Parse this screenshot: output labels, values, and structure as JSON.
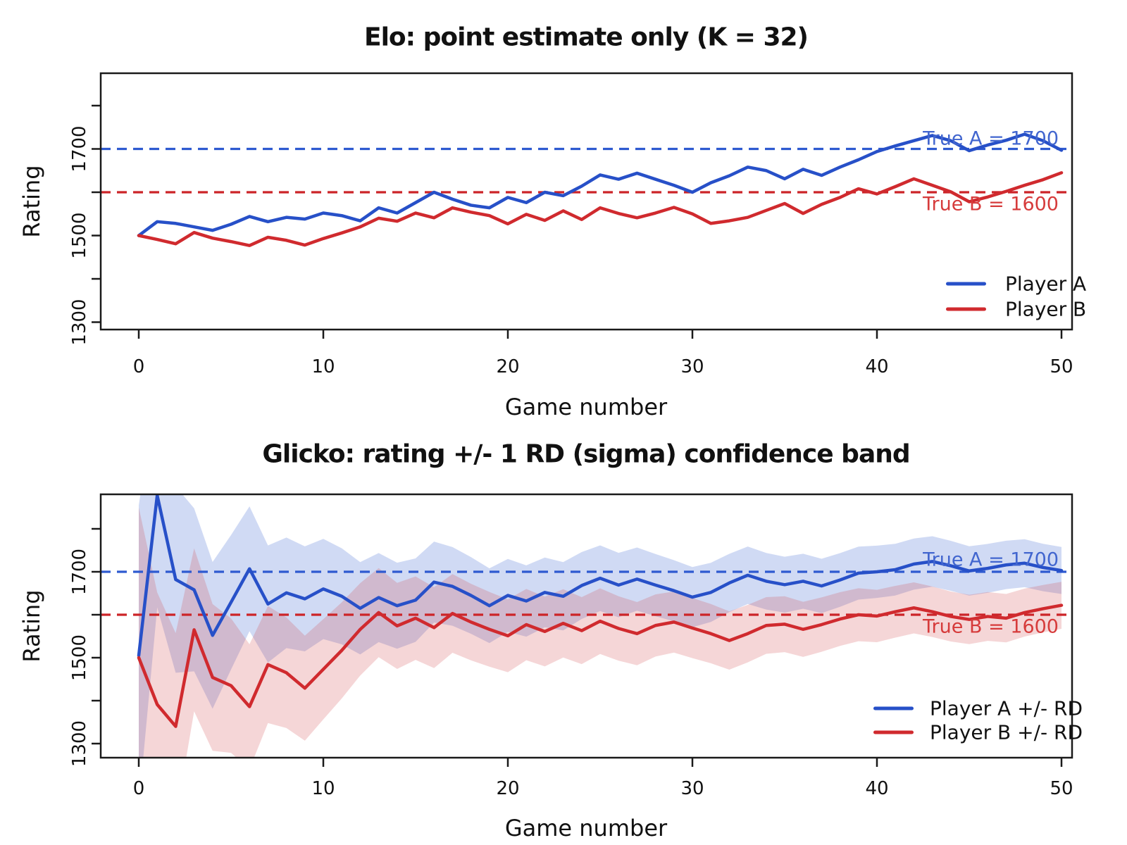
{
  "chart_data": [
    {
      "type": "line",
      "title": "Elo: point estimate only (K = 32)",
      "xlabel": "Game number",
      "ylabel": "Rating",
      "x_ticks": [
        0,
        10,
        20,
        30,
        40,
        50
      ],
      "y_ticks_labeled": [
        1300,
        1500,
        1700
      ],
      "y_ticks_minor": [
        1400,
        1600,
        1800
      ],
      "xlim": [
        0,
        50
      ],
      "ylim": [
        1283,
        1875
      ],
      "grid": "off",
      "legend_position": "lower right",
      "ref_lines": [
        {
          "value": 1700,
          "label": "True A = 1700",
          "color": "#2e5ad0",
          "label_color": "#4266cf"
        },
        {
          "value": 1600,
          "label": "True B = 1600",
          "color": "#cc2428",
          "label_color": "#d63b3b"
        }
      ],
      "series": [
        {
          "name": "Player A",
          "color": "#2750c8",
          "values": [
            1500,
            1532,
            1528,
            1520,
            1512,
            1526,
            1544,
            1532,
            1542,
            1538,
            1552,
            1546,
            1534,
            1564,
            1552,
            1576,
            1600,
            1584,
            1570,
            1564,
            1588,
            1576,
            1600,
            1592,
            1614,
            1640,
            1630,
            1644,
            1630,
            1616,
            1600,
            1622,
            1638,
            1658,
            1650,
            1631,
            1653,
            1639,
            1658,
            1675,
            1694,
            1707,
            1719,
            1731,
            1719,
            1696,
            1709,
            1720,
            1734,
            1719,
            1697
          ]
        },
        {
          "name": "Player B",
          "color": "#d02a2e",
          "values": [
            1500,
            1491,
            1481,
            1507,
            1494,
            1486,
            1477,
            1496,
            1489,
            1478,
            1493,
            1506,
            1520,
            1540,
            1533,
            1552,
            1541,
            1564,
            1554,
            1546,
            1527,
            1549,
            1535,
            1557,
            1537,
            1564,
            1551,
            1541,
            1552,
            1565,
            1550,
            1528,
            1534,
            1542,
            1558,
            1574,
            1551,
            1572,
            1588,
            1608,
            1596,
            1613,
            1631,
            1616,
            1601,
            1578,
            1589,
            1602,
            1616,
            1629,
            1645
          ]
        }
      ]
    },
    {
      "type": "line-band",
      "title": "Glicko: rating +/- 1 RD (sigma) confidence band",
      "xlabel": "Game number",
      "ylabel": "Rating",
      "x_ticks": [
        0,
        10,
        20,
        30,
        40,
        50
      ],
      "y_ticks_labeled": [
        1300,
        1500,
        1700
      ],
      "y_ticks_minor": [
        1400,
        1600,
        1800
      ],
      "xlim": [
        0,
        50
      ],
      "ylim": [
        1267,
        1879
      ],
      "grid": "off",
      "legend_position": "lower right",
      "ref_lines": [
        {
          "value": 1700,
          "label": "True A = 1700",
          "color": "#2e5ad0",
          "label_color": "#4266cf"
        },
        {
          "value": 1600,
          "label": "True B = 1600",
          "color": "#cc2428",
          "label_color": "#d63b3b"
        }
      ],
      "series": [
        {
          "name": "Player A +/- RD",
          "color": "#2750c8",
          "band_color": "rgba(60,100,210,0.24)",
          "values": [
            1505,
            1878,
            1682,
            1658,
            1552,
            1629,
            1707,
            1625,
            1651,
            1637,
            1660,
            1643,
            1615,
            1640,
            1621,
            1634,
            1676,
            1666,
            1645,
            1621,
            1645,
            1632,
            1652,
            1643,
            1668,
            1685,
            1669,
            1683,
            1669,
            1656,
            1641,
            1652,
            1674,
            1692,
            1678,
            1670,
            1678,
            1667,
            1681,
            1697,
            1700,
            1705,
            1718,
            1724,
            1714,
            1702,
            1708,
            1716,
            1720,
            1710,
            1703
          ],
          "rd": [
            350.0,
            260.9,
            217.1,
            189.8,
            170.8,
            156.5,
            145.3,
            136.2,
            128.7,
            122.2,
            116.7,
            111.8,
            107.5,
            103.7,
            100.2,
            97.1,
            94.2,
            91.6,
            89.2,
            87.0,
            84.9,
            83.0,
            81.2,
            79.5,
            77.9,
            76.4,
            75.0,
            73.6,
            72.4,
            71.1,
            70.0,
            68.9,
            67.9,
            66.9,
            65.9,
            65.0,
            64.1,
            63.3,
            62.5,
            61.7,
            60.9,
            60.2,
            59.5,
            58.8,
            58.2,
            57.5,
            56.9,
            56.3,
            55.8,
            55.2,
            54.7
          ]
        },
        {
          "name": "Player B +/- RD",
          "color": "#d02a2e",
          "band_color": "rgba(210,60,66,0.21)",
          "values": [
            1500,
            1391,
            1340,
            1565,
            1454,
            1435,
            1386,
            1484,
            1465,
            1429,
            1473,
            1517,
            1566,
            1605,
            1574,
            1592,
            1570,
            1603,
            1583,
            1566,
            1551,
            1577,
            1561,
            1580,
            1563,
            1585,
            1568,
            1556,
            1575,
            1583,
            1569,
            1556,
            1540,
            1556,
            1575,
            1578,
            1566,
            1577,
            1590,
            1600,
            1597,
            1607,
            1616,
            1607,
            1596,
            1589,
            1596,
            1592,
            1605,
            1614,
            1622
          ],
          "rd": [
            350.0,
            260.9,
            217.1,
            189.8,
            170.8,
            156.5,
            145.3,
            136.2,
            128.7,
            122.2,
            116.7,
            111.8,
            107.5,
            103.7,
            100.2,
            97.1,
            94.2,
            91.6,
            89.2,
            87.0,
            84.9,
            83.0,
            81.2,
            79.5,
            77.9,
            76.4,
            75.0,
            73.6,
            72.4,
            71.1,
            70.0,
            68.9,
            67.9,
            66.9,
            65.9,
            65.0,
            64.1,
            63.3,
            62.5,
            61.7,
            60.9,
            60.2,
            59.5,
            58.8,
            58.2,
            57.5,
            56.9,
            56.3,
            55.8,
            55.2,
            54.7
          ]
        }
      ]
    }
  ]
}
